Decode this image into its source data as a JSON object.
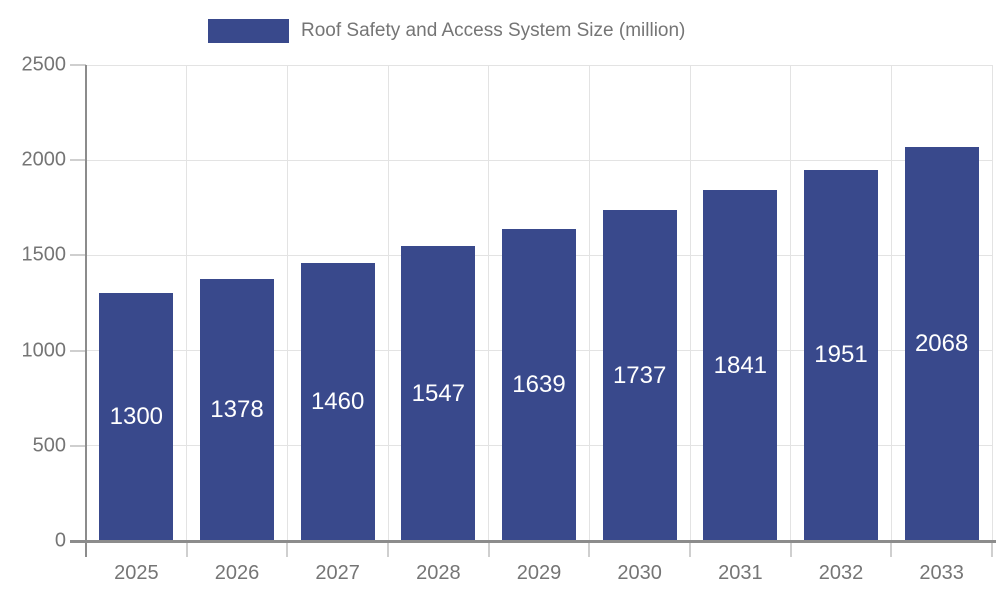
{
  "legend": {
    "label": "Roof Safety and Access System Size (million)"
  },
  "colors": {
    "bar": "#39498C",
    "bar_label": "#FFFFFF",
    "grid_line": "#E3E3E3",
    "axis_line": "#8C8C8C",
    "tick_line": "#CFCFCF",
    "text": "#757575"
  },
  "chart_data": {
    "type": "bar",
    "title": "Roof Safety and Access System Size (million)",
    "categories": [
      "2025",
      "2026",
      "2027",
      "2028",
      "2029",
      "2030",
      "2031",
      "2032",
      "2033"
    ],
    "values": [
      1300,
      1378,
      1460,
      1547,
      1639,
      1737,
      1841,
      1951,
      2068
    ],
    "xlabel": "",
    "ylabel": "",
    "ylim": [
      0,
      2500
    ],
    "yticks": [
      0,
      500,
      1000,
      1500,
      2000,
      2500
    ],
    "grid": true,
    "legend_position": "top",
    "bar_value_labels": "inside-center"
  }
}
